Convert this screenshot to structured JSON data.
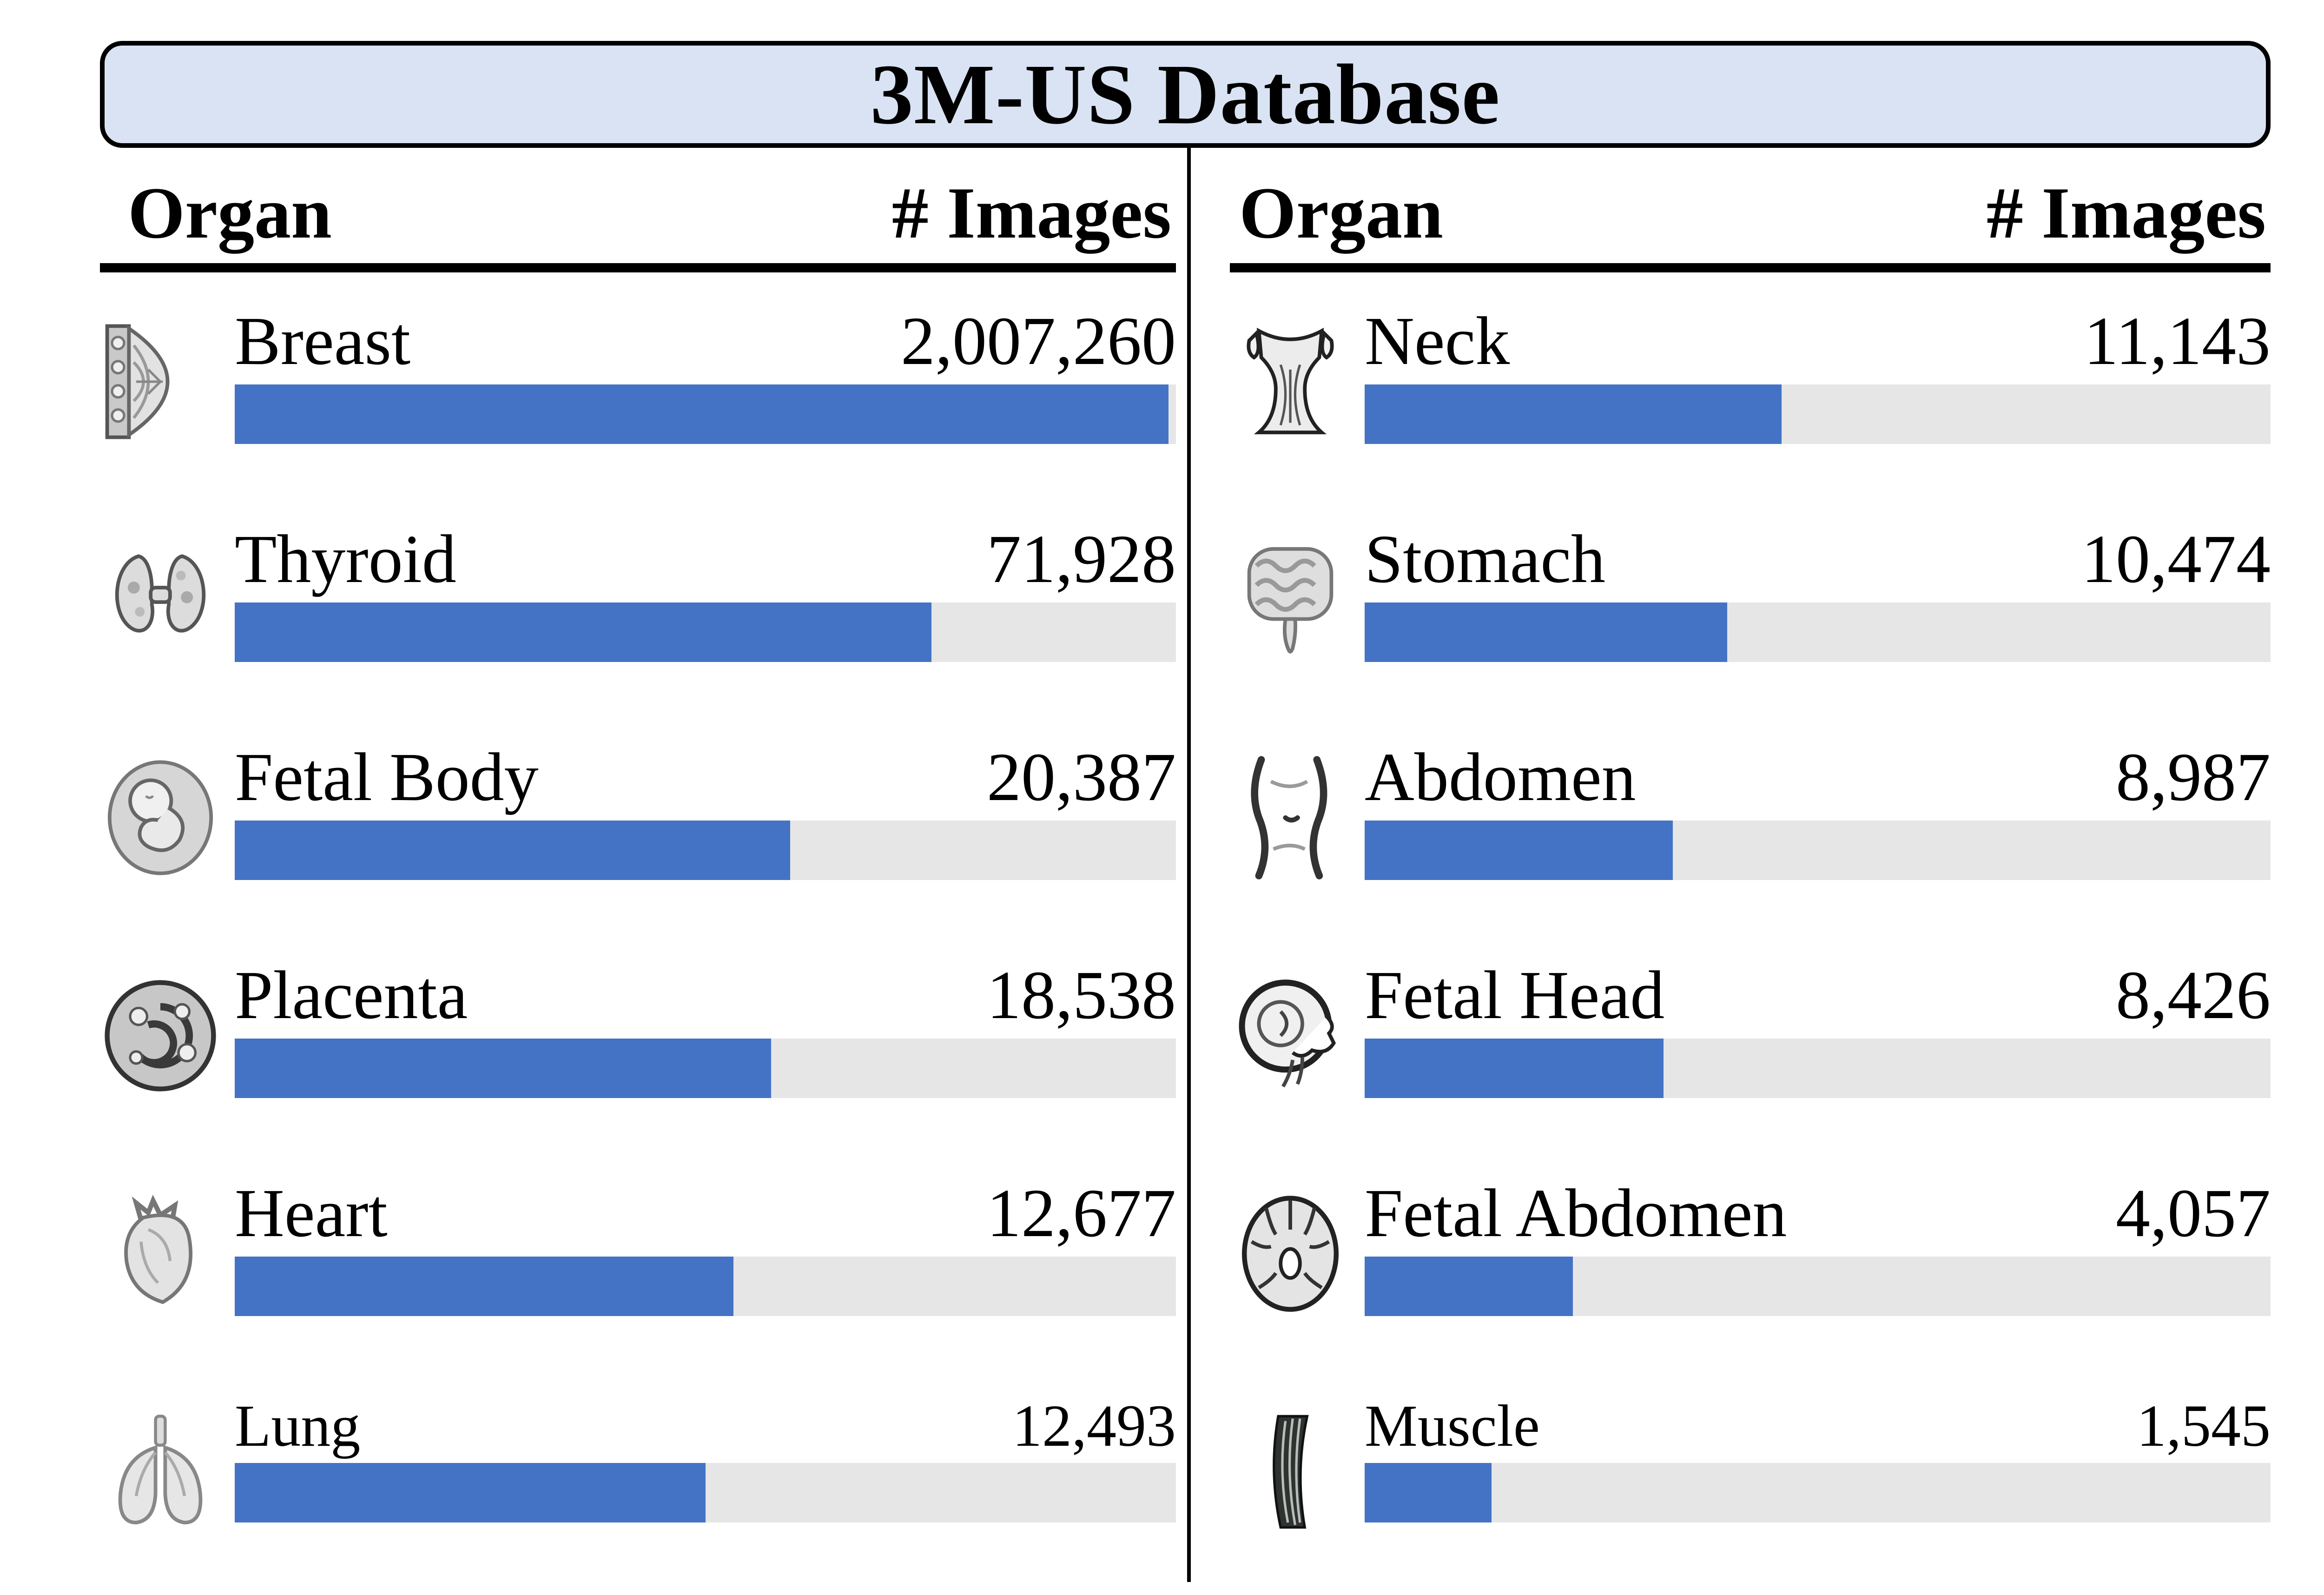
{
  "title": "3M-US Database",
  "columns": [
    {
      "organ_header": "Organ",
      "images_header": "# Images",
      "rows": [
        {
          "label": "Breast",
          "value_label": "2,007,260",
          "value": 2007260,
          "bar_pct": 99.2,
          "icon": "breast-icon"
        },
        {
          "label": "Thyroid",
          "value_label": "71,928",
          "value": 71928,
          "bar_pct": 74,
          "icon": "thyroid-icon"
        },
        {
          "label": "Fetal Body",
          "value_label": "20,387",
          "value": 20387,
          "bar_pct": 59,
          "icon": "fetal-body-icon"
        },
        {
          "label": "Placenta",
          "value_label": "18,538",
          "value": 18538,
          "bar_pct": 57,
          "icon": "placenta-icon"
        },
        {
          "label": "Heart",
          "value_label": "12,677",
          "value": 12677,
          "bar_pct": 53,
          "icon": "heart-icon"
        },
        {
          "label": "Lung",
          "value_label": "12,493",
          "value": 12493,
          "bar_pct": 50,
          "icon": "lung-icon"
        }
      ]
    },
    {
      "organ_header": "Organ",
      "images_header": "# Images",
      "rows": [
        {
          "label": "Neck",
          "value_label": "11,143",
          "value": 11143,
          "bar_pct": 46,
          "icon": "neck-icon"
        },
        {
          "label": "Stomach",
          "value_label": "10,474",
          "value": 10474,
          "bar_pct": 40,
          "icon": "stomach-icon"
        },
        {
          "label": "Abdomen",
          "value_label": "8,987",
          "value": 8987,
          "bar_pct": 34,
          "icon": "abdomen-icon"
        },
        {
          "label": "Fetal Head",
          "value_label": "8,426",
          "value": 8426,
          "bar_pct": 33,
          "icon": "fetal-head-icon"
        },
        {
          "label": "Fetal Abdomen",
          "value_label": "4,057",
          "value": 4057,
          "bar_pct": 23,
          "icon": "fetal-abdomen-icon"
        },
        {
          "label": "Muscle",
          "value_label": "1,545",
          "value": 1545,
          "bar_pct": 14,
          "icon": "muscle-icon"
        }
      ]
    }
  ],
  "colors": {
    "bar_fill": "#4473C6",
    "bar_track": "#E6E6E6",
    "title_bg": "#DAE3F3",
    "line": "#000000"
  },
  "chart_data": {
    "type": "bar",
    "orientation": "horizontal",
    "title": "3M-US Database",
    "xlabel": "# Images",
    "ylabel": "Organ",
    "grid": false,
    "legend_position": "none",
    "layout": "two-column table, each row has a progress-style horizontal bar under the organ label and count",
    "categories": [
      "Breast",
      "Thyroid",
      "Fetal Body",
      "Placenta",
      "Heart",
      "Lung",
      "Neck",
      "Stomach",
      "Abdomen",
      "Fetal Head",
      "Fetal Abdomen",
      "Muscle"
    ],
    "values": [
      2007260,
      71928,
      20387,
      18538,
      12677,
      12493,
      11143,
      10474,
      8987,
      8426,
      4057,
      1545
    ],
    "value_labels": [
      "2,007,260",
      "71,928",
      "20,387",
      "18,538",
      "12,677",
      "12,493",
      "11,143",
      "10,474",
      "8,987",
      "8,426",
      "4,057",
      "1,545"
    ],
    "bar_fill_fractions": [
      0.992,
      0.74,
      0.59,
      0.57,
      0.53,
      0.5,
      0.46,
      0.4,
      0.34,
      0.33,
      0.23,
      0.14
    ],
    "bar_scale_note": "bar lengths are non-linear (log-like) relative to counts"
  }
}
